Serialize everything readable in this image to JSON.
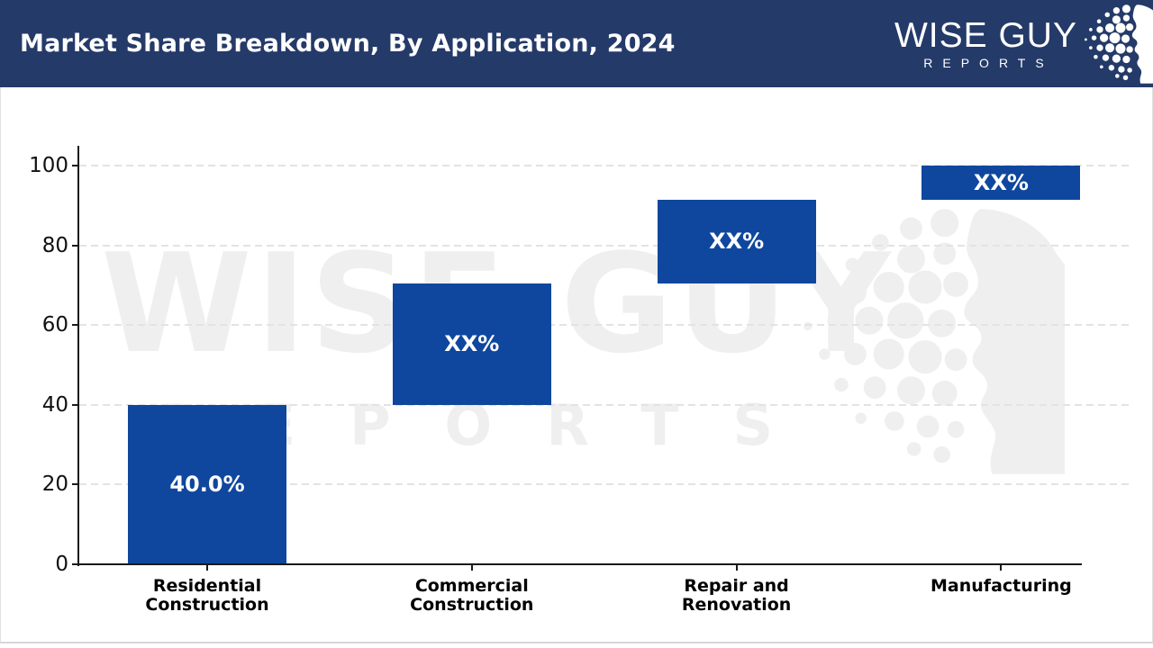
{
  "header": {
    "title": "Market Share Breakdown, By Application, 2024",
    "logo": {
      "line1": "WISE GUY",
      "line2": "REPORTS"
    }
  },
  "watermark": {
    "line1": "WISE GUY",
    "line2": "REPORTS"
  },
  "chart_data": {
    "type": "bar",
    "subtype": "waterfall",
    "title": "Market Share Breakdown, By Application, 2024",
    "categories": [
      [
        "Residential",
        "Construction"
      ],
      [
        "Commercial",
        "Construction"
      ],
      [
        "Repair and",
        "Renovation"
      ],
      [
        "Manufacturing"
      ]
    ],
    "bars": [
      {
        "category": "Residential Construction",
        "start": 0,
        "end": 40,
        "label": "40.0%"
      },
      {
        "category": "Commercial Construction",
        "start": 40,
        "end": 70.5,
        "label": "XX%"
      },
      {
        "category": "Repair and Renovation",
        "start": 70.5,
        "end": 91.5,
        "label": "XX%"
      },
      {
        "category": "Manufacturing",
        "start": 91.5,
        "end": 100,
        "label": "XX%"
      }
    ],
    "xlabel": "",
    "ylabel": "",
    "ylim": [
      0,
      105
    ],
    "yticks": [
      0,
      20,
      40,
      60,
      80,
      100
    ],
    "grid": "horizontal-dashed",
    "legend": "none"
  },
  "colors": {
    "header_bg": "#243a69",
    "bar": "#0f479e",
    "grid": "#e3e3e3",
    "axis": "#1a1a1a",
    "watermark": "#efefef",
    "bar_label": "#ffffff"
  }
}
